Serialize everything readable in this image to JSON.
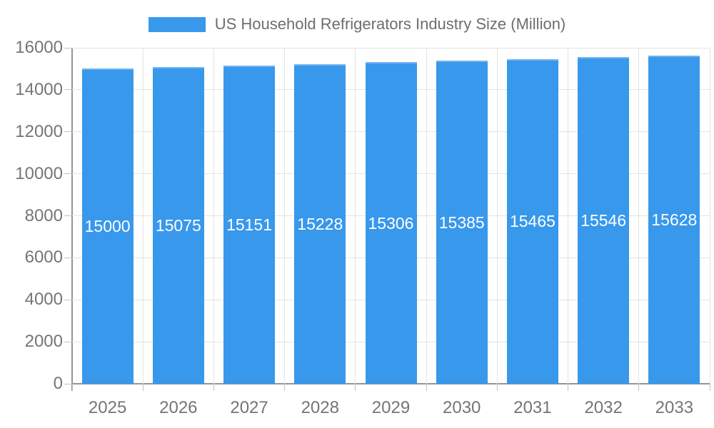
{
  "page": {
    "background": "#ffffff"
  },
  "chart_data": {
    "type": "bar",
    "title": "US Household Refrigerators Industry Size (Million)",
    "categories": [
      "2025",
      "2026",
      "2027",
      "2028",
      "2029",
      "2030",
      "2031",
      "2032",
      "2033"
    ],
    "series": [
      {
        "name": "US Household Refrigerators Industry Size (Million)",
        "values": [
          15000,
          15075,
          15151,
          15228,
          15306,
          15385,
          15465,
          15546,
          15628
        ]
      }
    ],
    "value_labels_shown": true,
    "xlabel": "",
    "ylabel": "",
    "ylim": [
      0,
      16000
    ],
    "ytick_step": 2000,
    "ytick_labels": [
      "0",
      "2000",
      "4000",
      "6000",
      "8000",
      "10000",
      "12000",
      "14000",
      "16000"
    ],
    "grid": true,
    "legend_position": "top",
    "colors": {
      "bar_fill": "#3898EC",
      "bar_top_edge": "#84bff3",
      "axis_line": "#949494",
      "tick": "#c2c2c2",
      "gridline": "#e3e3e3",
      "axis_label_text": "#757575",
      "value_label_text": "#ffffff",
      "legend_text": "#6e6e6e",
      "background": "#ffffff"
    }
  }
}
